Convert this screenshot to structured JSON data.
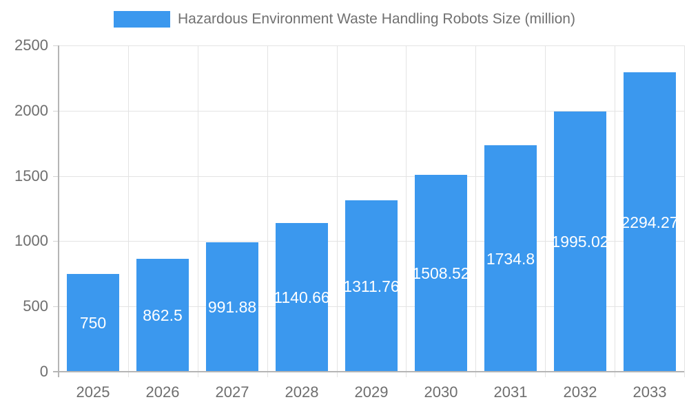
{
  "chart_data": {
    "type": "bar",
    "title": "Hazardous Environment Waste Handling Robots Size (million)",
    "categories": [
      "2025",
      "2026",
      "2027",
      "2028",
      "2029",
      "2030",
      "2031",
      "2032",
      "2033"
    ],
    "values": [
      750,
      862.5,
      991.88,
      1140.66,
      1311.76,
      1508.52,
      1734.8,
      1995.02,
      2294.27
    ],
    "bar_labels": [
      "750",
      "862.5",
      "991.88",
      "1140.66",
      "1311.76",
      "1508.52",
      "1734.8",
      "1995.02",
      "2294.27"
    ],
    "xlabel": "",
    "ylabel": "",
    "ylim": [
      0,
      2500
    ],
    "yticks": [
      0,
      500,
      1000,
      1500,
      2000,
      2500
    ],
    "grid": true,
    "legend_position": "top",
    "bar_color": "#3b98ee",
    "value_label_color": "#ffffff",
    "tick_label_color": "#6e6e6e",
    "gridline_color": "#e3e3e3",
    "axis_line_color": "#b5b5b5"
  }
}
